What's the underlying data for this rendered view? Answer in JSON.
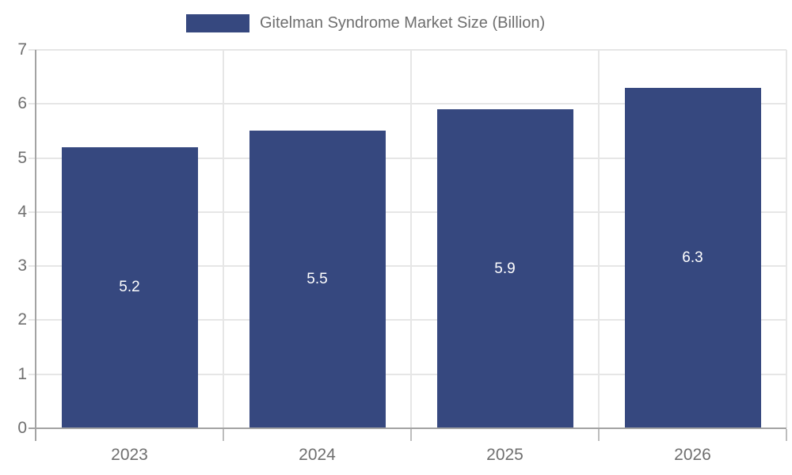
{
  "legend": {
    "label": "Gitelman Syndrome Market Size (Billion)"
  },
  "colors": {
    "bar": "#36487f",
    "legend_text": "#6e6e6e",
    "axis_text": "#6f6f6f",
    "grid_line": "#e6e6e6",
    "axis_line": "#a3a3a3",
    "tick_mark": "#bdbdbd",
    "value_label": "#ffffff",
    "background": "#ffffff"
  },
  "chart_data": {
    "type": "bar",
    "title": "Gitelman Syndrome Market Size (Billion)",
    "categories": [
      "2023",
      "2024",
      "2025",
      "2026"
    ],
    "values": [
      5.2,
      5.5,
      5.9,
      6.3
    ],
    "series_name": "Gitelman Syndrome Market Size (Billion)",
    "xlabel": "",
    "ylabel": "",
    "ylim": [
      0,
      7
    ],
    "yticks": [
      0,
      1,
      2,
      3,
      4,
      5,
      6,
      7
    ],
    "grid": true,
    "legend_position": "top-center",
    "value_labels": "inside-center"
  }
}
